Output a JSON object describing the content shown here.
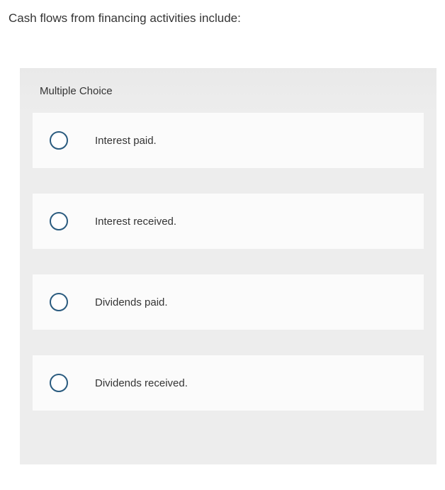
{
  "question": {
    "text": "Cash flows from financing activities include:"
  },
  "section_label": "Multiple Choice",
  "options": [
    {
      "label": "Interest paid."
    },
    {
      "label": "Interest received."
    },
    {
      "label": "Dividends paid."
    },
    {
      "label": "Dividends received."
    }
  ],
  "style": {
    "radio_border_color": "#2a5b7f",
    "option_bg": "#fbfbfb",
    "container_bg": "#ededed",
    "text_color": "#343434",
    "question_fontsize": 17,
    "label_fontsize": 15
  }
}
